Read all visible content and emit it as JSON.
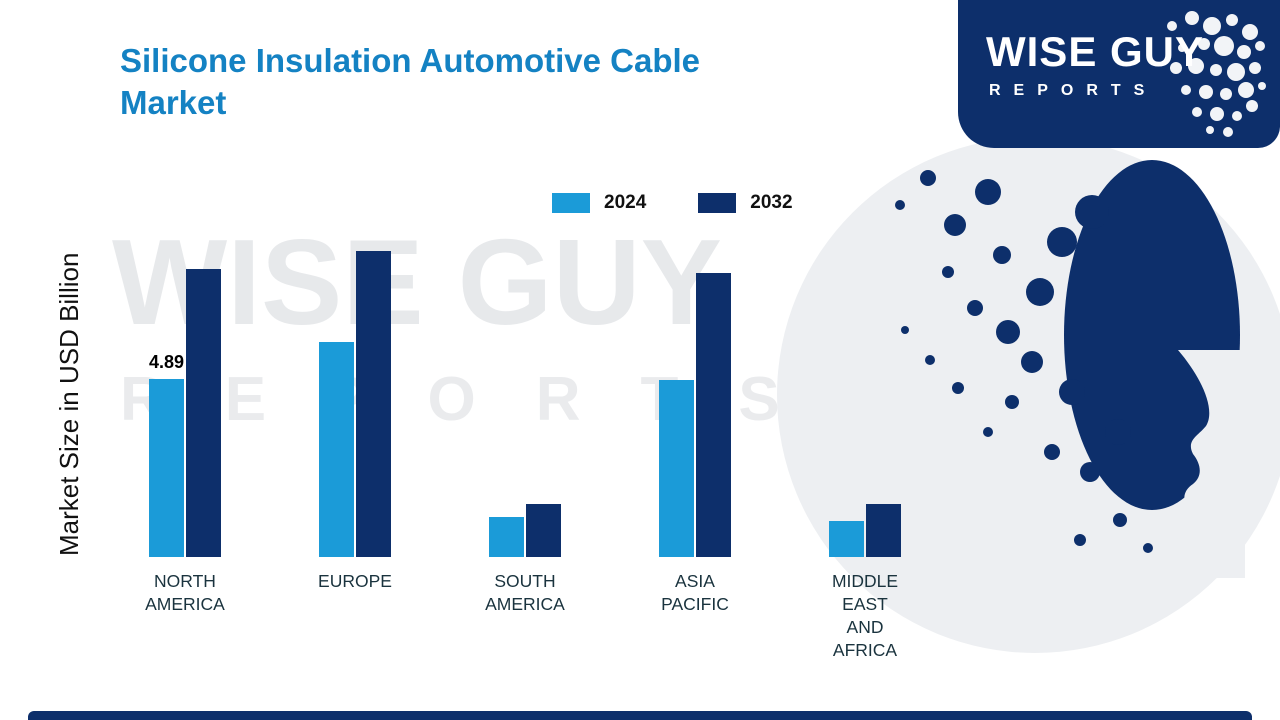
{
  "title": "Silicone Insulation Automotive Cable Market",
  "brand": {
    "line1": "WISE GUY",
    "line2": "REPORTS",
    "navy": "#0d2f6b"
  },
  "watermark": {
    "line1": "WISE GUY",
    "line2": "REPORTS"
  },
  "colors": {
    "title_blue": "#1482c3",
    "bar_2024": "#1b9bd8",
    "bar_2032": "#0d2f6b",
    "watermark_gray": "#d9dce0"
  },
  "chart_data": {
    "type": "bar",
    "title": "Silicone Insulation Automotive Cable Market",
    "xlabel": "",
    "ylabel": "Market Size in USD Billion",
    "ylim": [
      0,
      8.5
    ],
    "grid": false,
    "legend_position": "top",
    "categories": [
      "NORTH AMERICA",
      "EUROPE",
      "SOUTH AMERICA",
      "ASIA PACIFIC",
      "MIDDLE EAST AND AFRICA"
    ],
    "series": [
      {
        "name": "2024",
        "color": "#1b9bd8",
        "values": [
          4.89,
          5.9,
          1.1,
          4.85,
          1.0
        ],
        "bar_labels": [
          "4.89",
          "",
          "",
          "",
          ""
        ]
      },
      {
        "name": "2032",
        "color": "#0d2f6b",
        "values": [
          7.9,
          8.4,
          1.45,
          7.8,
          1.45
        ],
        "bar_labels": [
          "",
          "",
          "",
          "",
          ""
        ]
      }
    ]
  }
}
